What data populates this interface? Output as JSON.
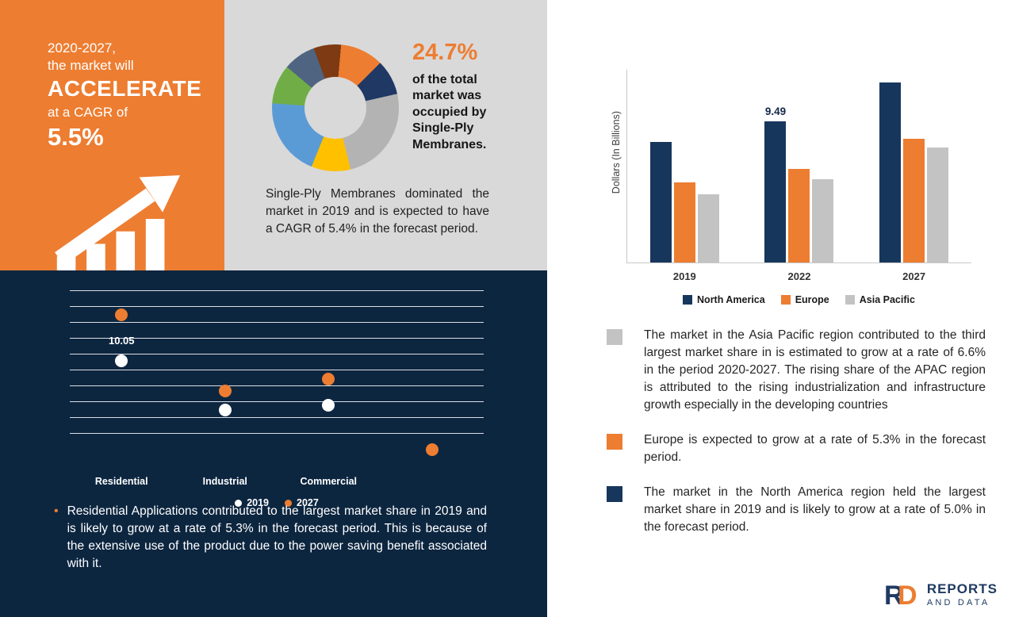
{
  "colors": {
    "orange": "#ED7D31",
    "navy_panel": "#0D2640",
    "navy_bar": "#17365C",
    "gray_panel": "#D9D9D9",
    "gray_bar": "#C3C3C3",
    "white": "#FFFFFF"
  },
  "accelerate_panel": {
    "line1": "2020-2027,",
    "line2": "the market will",
    "line3": "ACCELERATE",
    "line4": "at a CAGR of",
    "line5": "5.5%"
  },
  "single_ply": {
    "pct": "24.7%",
    "caption": "of the total market was occupied by Single-Ply Membranes.",
    "body": "Single-Ply Membranes dominated the market in 2019 and is expected to have a CAGR of 5.4% in the forecast period."
  },
  "applications": {
    "bullet": "Residential Applications contributed to the largest market share in 2019 and is likely to grow at a rate of 5.3% in the forecast period. This is because of the extensive use of the product due to the power saving benefit associated with it."
  },
  "regional": {
    "bullets": [
      {
        "color": "#C3C3C3",
        "text": "The market in the Asia Pacific region contributed to the third largest market share in is estimated to grow at a rate of 6.6% in the period 2020-2027. The rising share of the APAC region is attributed to the rising industrialization and infrastructure growth especially in the developing countries"
      },
      {
        "color": "#ED7D31",
        "text": "Europe is expected to grow at a rate of 5.3% in the forecast period."
      },
      {
        "color": "#17365C",
        "text": "The market in the North America region held the largest market share in 2019 and is likely to grow at a rate of 5.0% in the forecast period."
      }
    ]
  },
  "logo": {
    "line1": "REPORTS",
    "line2": "AND DATA"
  },
  "chart_data": [
    {
      "id": "membrane-share-donut",
      "type": "pie",
      "donut": true,
      "start_angle": -20,
      "values": [
        7,
        11,
        9,
        24.7,
        10,
        20,
        10,
        8.3
      ],
      "colors": [
        "#7E3A12",
        "#ED7D31",
        "#1F3864",
        "#B3B3B3",
        "#FFC000",
        "#5B9BD5",
        "#70AD47",
        "#4F6480"
      ],
      "highlight": {
        "label": "Single-Ply Membranes",
        "value": 24.7
      }
    },
    {
      "id": "regional-market-bars",
      "type": "bar",
      "categories": [
        "2019",
        "2022",
        "2027"
      ],
      "series": [
        {
          "name": "North America",
          "color": "#17365C",
          "values": [
            8.1,
            9.49,
            12.1
          ]
        },
        {
          "name": "Europe",
          "color": "#ED7D31",
          "values": [
            5.4,
            6.3,
            8.3
          ]
        },
        {
          "name": "Asia Pacific",
          "color": "#C3C3C3",
          "values": [
            4.6,
            5.6,
            7.7
          ]
        }
      ],
      "ylabel": "Dollars (In Billions)",
      "ylim": [
        0,
        13
      ],
      "legend_position": "bottom",
      "bar_label": {
        "series": 0,
        "category": 1,
        "text": "9.49"
      }
    },
    {
      "id": "application-dotplot",
      "type": "scatter",
      "categories": [
        "Residential",
        "Industrial",
        "Commercial",
        ""
      ],
      "series": [
        {
          "name": "2019",
          "color": "#FFFFFF",
          "values": [
            10.05,
            6.95,
            7.25,
            null
          ]
        },
        {
          "name": "2027",
          "color": "#ED7D31",
          "values": [
            12.95,
            8.15,
            8.9,
            4.45
          ]
        }
      ],
      "ylim": [
        5.5,
        14.5
      ],
      "gridlines": 10,
      "legend_position": "bottom",
      "point_label": {
        "series": 0,
        "category": 0,
        "text": "10.05"
      }
    }
  ]
}
